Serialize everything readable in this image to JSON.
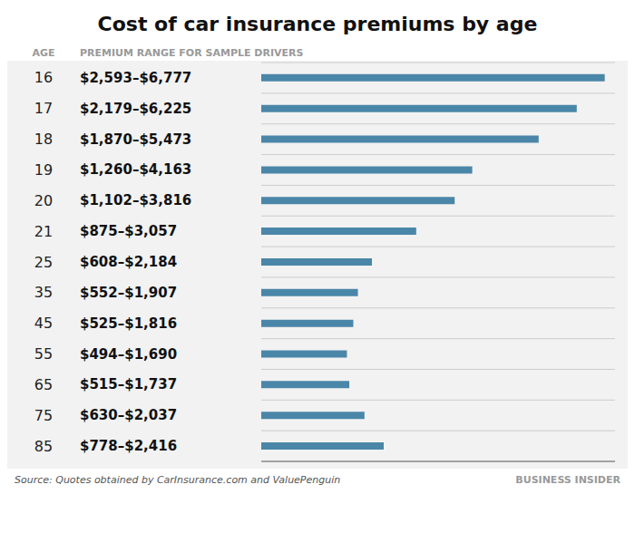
{
  "chart_data": {
    "type": "bar",
    "orientation": "horizontal",
    "title": "Cost of car insurance premiums by age",
    "y_label": "AGE",
    "annotations": [
      "PREMIUM RANGE FOR SAMPLE DRIVERS",
      "Source: Quotes obtained by CarInsurance.com and ValuePenguin",
      "BUSINESS INSIDER"
    ],
    "categories": [
      "16",
      "17",
      "18",
      "19",
      "20",
      "21",
      "25",
      "35",
      "45",
      "55",
      "65",
      "75",
      "85"
    ],
    "values": [
      6777,
      6225,
      5473,
      4163,
      3816,
      3057,
      2184,
      1907,
      1816,
      1690,
      1737,
      2037,
      2416
    ],
    "data_labels": true,
    "value_labels": [
      "$2,593–$6,777",
      "$2,179–$6,225",
      "$1,870–$5,473",
      "$1,260–$4,163",
      "$1,102–$3,816",
      "$875–$3,057",
      "$608–$2,184",
      "$552–$1,907",
      "$525–$1,816",
      "$494–$1,690",
      "$515–$1,737",
      "$630–$2,037",
      "$778–$2,416"
    ],
    "color": "#4a86a8",
    "xlim": [
      0,
      6980.31
    ],
    "tick_labels": "y",
    "grid": true
  }
}
